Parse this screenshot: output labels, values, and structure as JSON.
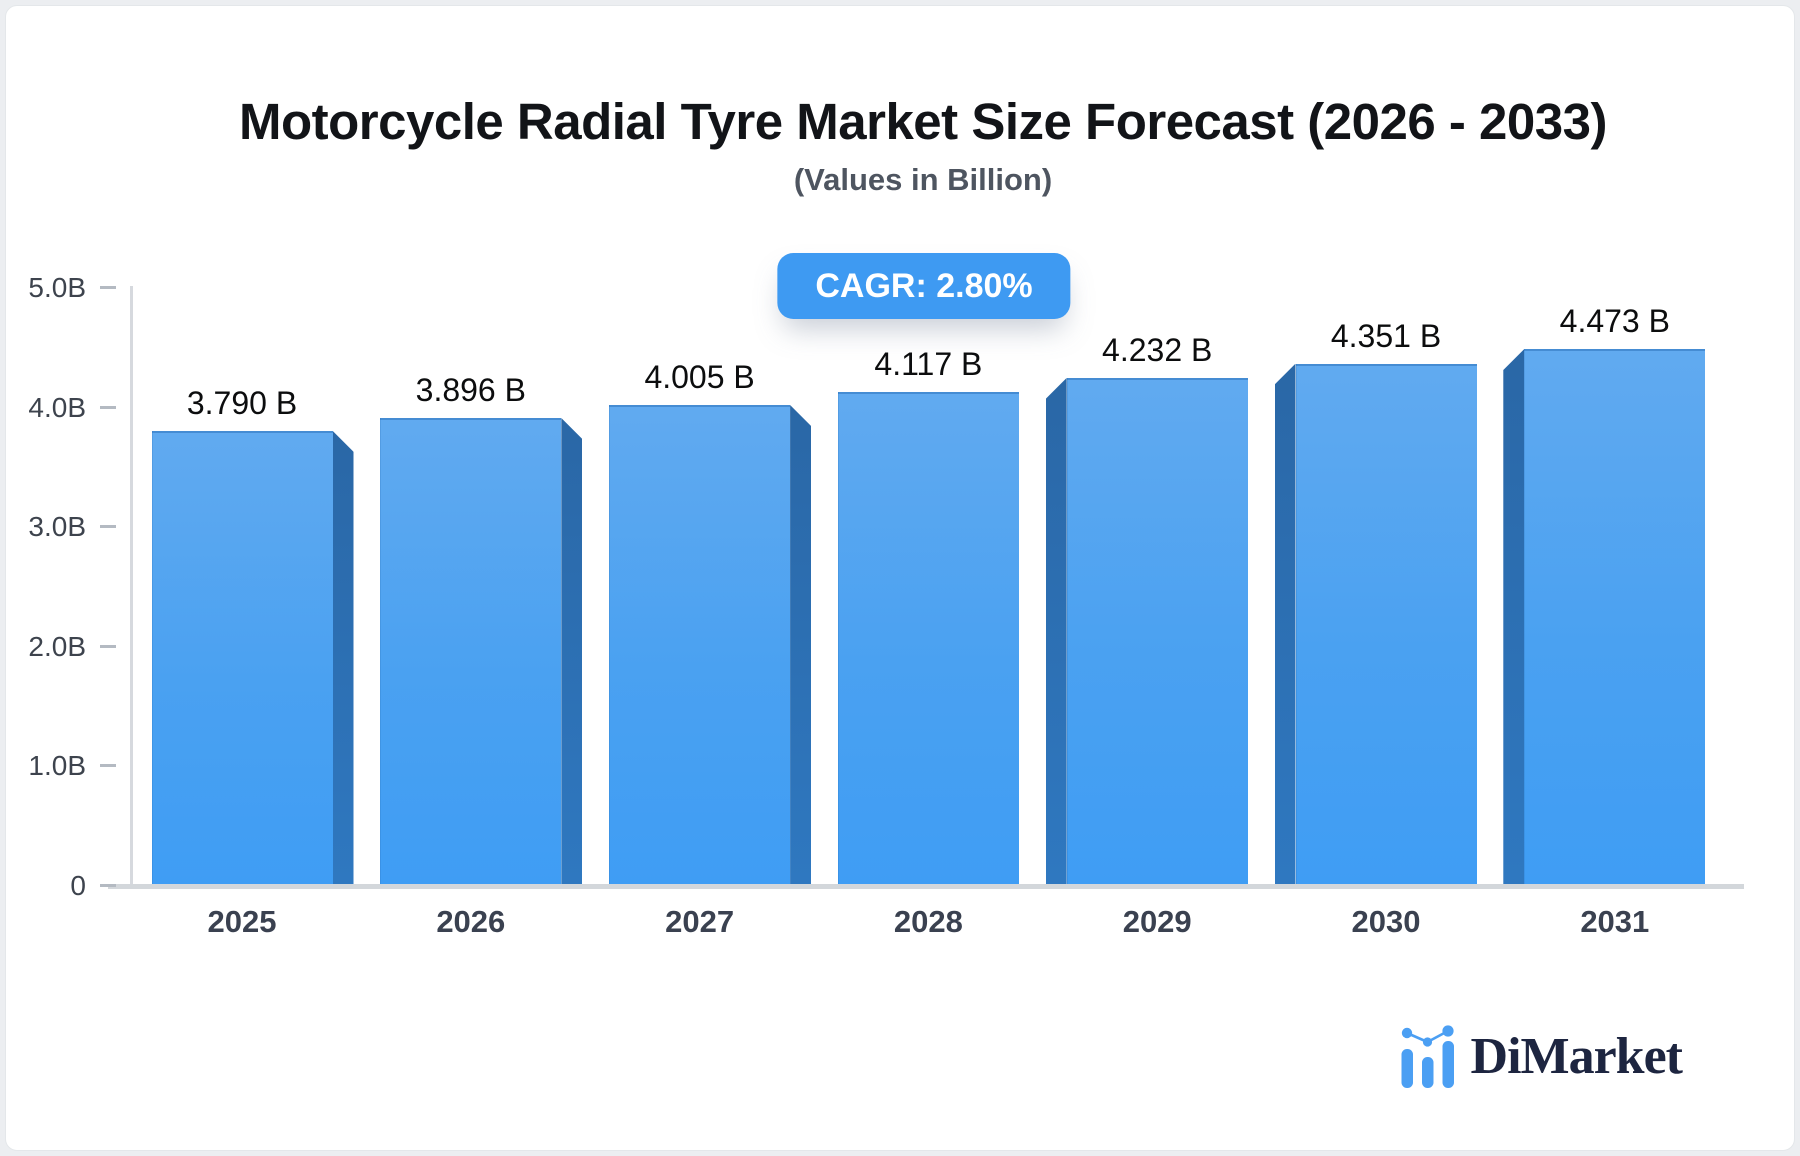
{
  "chart_data": {
    "type": "bar",
    "title": "Motorcycle Radial Tyre Market Size Forecast (2026 - 2033)",
    "subtitle": "(Values in Billion)",
    "annotation": "CAGR: 2.80%",
    "categories": [
      "2025",
      "2026",
      "2027",
      "2028",
      "2029",
      "2030",
      "2031"
    ],
    "values": [
      3.79,
      3.896,
      4.005,
      4.117,
      4.232,
      4.351,
      4.473
    ],
    "value_labels": [
      "3.790 B",
      "3.896 B",
      "4.005 B",
      "4.117 B",
      "4.232 B",
      "4.351 B",
      "4.473 B"
    ],
    "xlabel": "",
    "ylabel": "",
    "ylim": [
      0,
      5
    ],
    "ytick_labels": [
      "0",
      "1.0B",
      "2.0B",
      "3.0B",
      "4.0B",
      "5.0B"
    ],
    "ytick_values": [
      0,
      1,
      2,
      3,
      4,
      5
    ],
    "grid": false,
    "legend_position": "none",
    "pseudo_3d": true,
    "colors": {
      "bar_face_top": "#61aaf0",
      "bar_face_bottom": "#3f9df4",
      "bar_side": "#2d70b2",
      "badge_bg": "#3e9af2",
      "badge_text": "#ffffff",
      "axis": "#d6d9de"
    }
  },
  "logo": {
    "text": "DiMarket",
    "icon": "bar-chart-logo-icon",
    "icon_color": "#4b9ff3",
    "text_color": "#1d2540"
  }
}
